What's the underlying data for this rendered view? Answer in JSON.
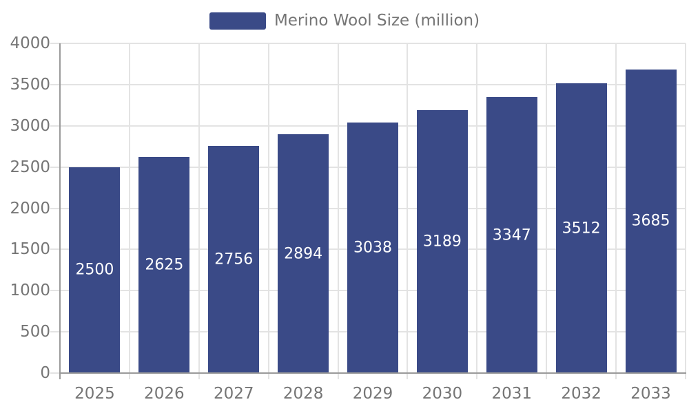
{
  "chart_data": {
    "type": "bar",
    "title": "",
    "legend": {
      "label": "Merino Wool Size (million)",
      "position": "top-center"
    },
    "categories": [
      "2025",
      "2026",
      "2027",
      "2028",
      "2029",
      "2030",
      "2031",
      "2032",
      "2033"
    ],
    "series": [
      {
        "name": "Merino Wool Size (million)",
        "values": [
          2500,
          2625,
          2756,
          2894,
          3038,
          3189,
          3347,
          3512,
          3685
        ]
      }
    ],
    "xlabel": "",
    "ylabel": "",
    "ylim": [
      0,
      4000
    ],
    "yticks": [
      0,
      500,
      1000,
      1500,
      2000,
      2500,
      3000,
      3500,
      4000
    ],
    "grid": true,
    "bar_labels_visible": true,
    "colors": {
      "bar": "#3a4a87",
      "bar_label_text": "#ffffff",
      "axis_text": "#757575",
      "grid_line": "#e3e3e3",
      "axis_line": "#9a9a9a",
      "background": "#ffffff"
    }
  }
}
